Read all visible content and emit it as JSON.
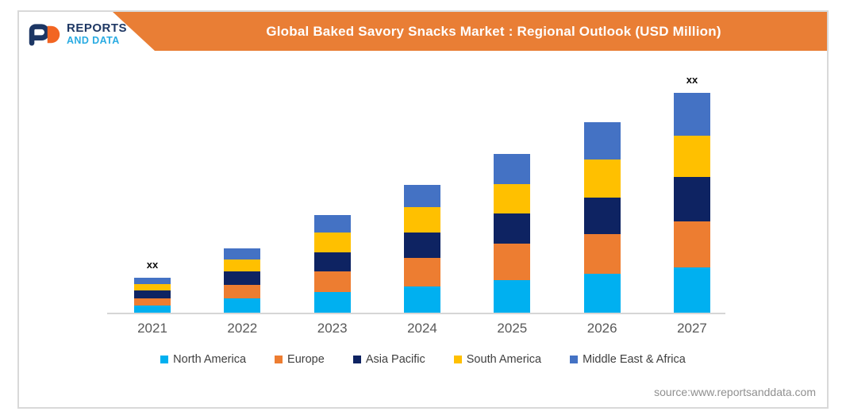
{
  "logo": {
    "line1": "REPORTS",
    "line2": "AND DATA",
    "mark_colors": {
      "r": "#1c3664",
      "d": "#f26522"
    }
  },
  "header": {
    "title": "Global Baked Savory Snacks Market : Regional Outlook (USD Million)",
    "bg_color": "#e97e35",
    "text_color": "#ffffff"
  },
  "chart_data": {
    "type": "bar",
    "stacked": true,
    "title": "Global Baked Savory Snacks Market : Regional Outlook (USD Million)",
    "xlabel": "",
    "ylabel": "",
    "grid": false,
    "y_axis_shown": false,
    "legend_position": "bottom",
    "categories": [
      "2021",
      "2022",
      "2023",
      "2024",
      "2025",
      "2026",
      "2027"
    ],
    "series": [
      {
        "name": "North America",
        "color": "#00b0f0",
        "values": [
          9,
          18,
          26,
          33,
          41,
          49,
          57
        ]
      },
      {
        "name": "Europe",
        "color": "#ed7d31",
        "values": [
          9,
          17,
          26,
          36,
          46,
          50,
          58
        ]
      },
      {
        "name": "Asia Pacific",
        "color": "#0e2362",
        "values": [
          10,
          17,
          24,
          32,
          38,
          46,
          56
        ]
      },
      {
        "name": "South America",
        "color": "#ffc000",
        "values": [
          8,
          15,
          25,
          32,
          37,
          48,
          52
        ]
      },
      {
        "name": "Middle East & Africa",
        "color": "#4472c4",
        "values": [
          8,
          14,
          22,
          28,
          38,
          47,
          54
        ]
      }
    ],
    "bar_labels": [
      "xx",
      "",
      "",
      "",
      "",
      "",
      "xx"
    ],
    "values_note": "numeric values are masked as 'xx' in the chart; series values are relative stacked-segment heights"
  },
  "footer": {
    "source": "source:www.reportsanddata.com"
  }
}
